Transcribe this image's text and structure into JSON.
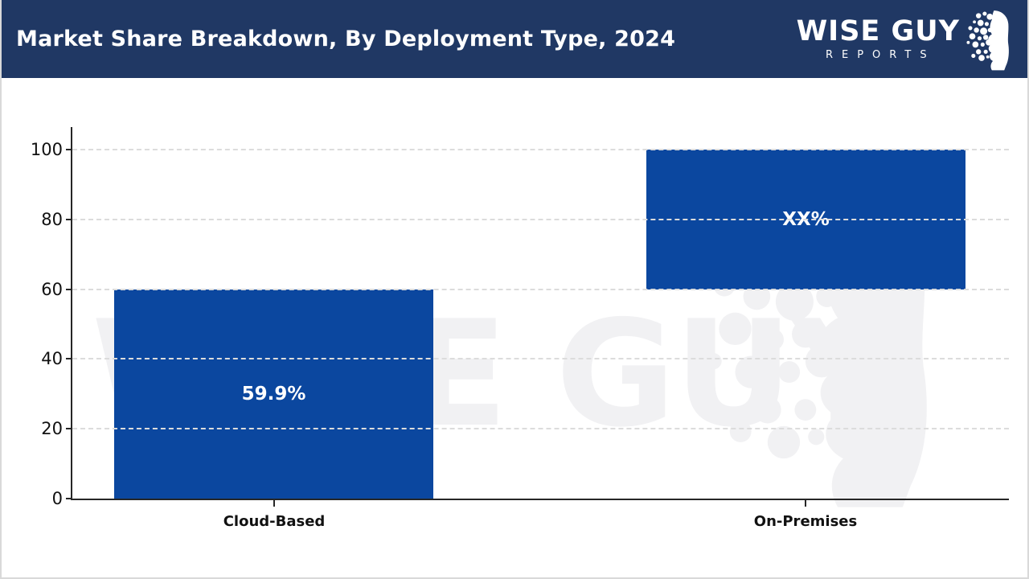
{
  "header": {
    "title": "Market Share Breakdown, By Deployment Type, 2024",
    "logo": {
      "line1": "WISE GUY",
      "line2": "REPORTS"
    }
  },
  "watermark": {
    "line1": "WISE GUY",
    "line2": "RTS"
  },
  "colors": {
    "header_bg": "#203864",
    "bar": "#0b479f",
    "grid": "#dcdcdc",
    "axis": "#262626",
    "value_label": "#ffffff",
    "watermark": "#f1f1f3"
  },
  "chart_data": {
    "type": "bar",
    "title": "Market Share Breakdown, By Deployment Type, 2024",
    "categories": [
      "Cloud-Based",
      "On-Premises"
    ],
    "series": [
      {
        "name": "Cloud-Based",
        "start": 0,
        "end": 59.9,
        "label": "59.9%"
      },
      {
        "name": "On-Premises",
        "start": 59.9,
        "end": 100,
        "label": "XX%"
      }
    ],
    "stacked": true,
    "orientation": "vertical",
    "yticks": [
      0,
      20,
      40,
      60,
      80,
      100
    ],
    "ylim": [
      0,
      105
    ],
    "xlabel": "",
    "ylabel": "",
    "grid": "dashed-horizontal",
    "legend": "none",
    "bar_color": "#0b479f"
  }
}
